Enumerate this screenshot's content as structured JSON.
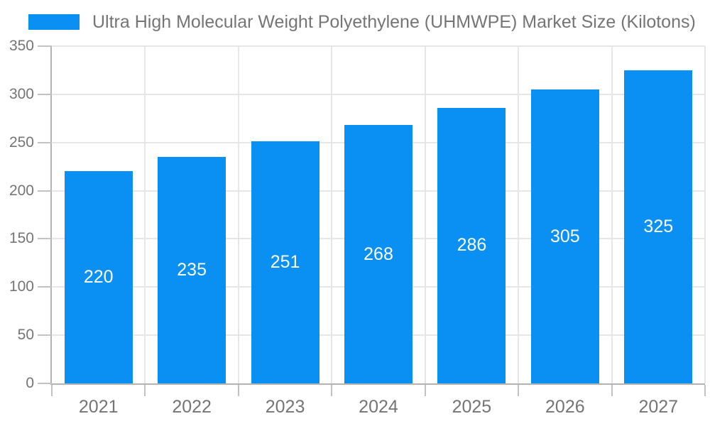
{
  "chart_data": {
    "type": "bar",
    "title": "Ultra High Molecular Weight Polyethylene (UHMWPE) Market Size (Kilotons)",
    "categories": [
      "2021",
      "2022",
      "2023",
      "2024",
      "2025",
      "2026",
      "2027"
    ],
    "values": [
      220,
      235,
      251,
      268,
      286,
      305,
      325
    ],
    "yticks": [
      0,
      50,
      100,
      150,
      200,
      250,
      300,
      350
    ],
    "ylim": [
      0,
      350
    ],
    "xlabel": "",
    "ylabel": "",
    "grid": true,
    "legend_position": "top-left",
    "colors": {
      "bar": "#0a90f2",
      "bar_label_text": "#ffffff",
      "legend_text": "#757575",
      "axis_tick_text": "#757575",
      "grid_line": "#e6e6e6",
      "axis_line": "#b3b3b3",
      "tick_mark": "#c2c2c2",
      "background": "#ffffff"
    }
  }
}
